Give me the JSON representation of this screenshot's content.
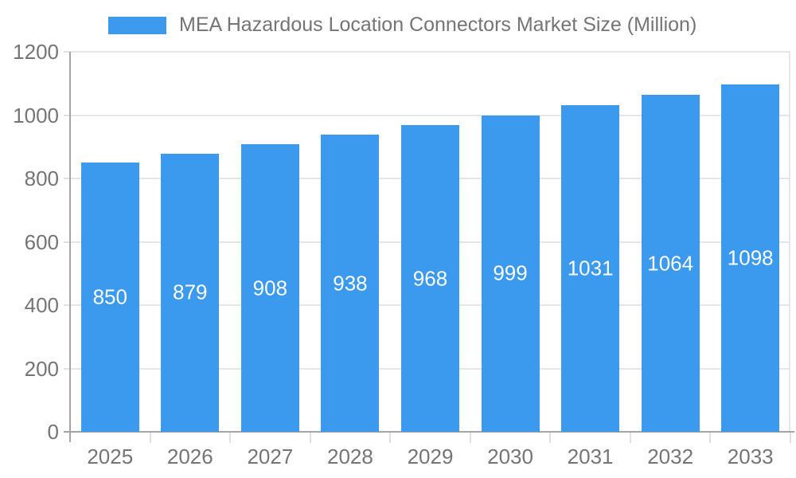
{
  "legend": {
    "label": "MEA Hazardous Location Connectors Market Size (Million)",
    "swatch_color": "#3B99EE"
  },
  "chart_data": {
    "type": "bar",
    "title": "MEA Hazardous Location Connectors Market Size (Million)",
    "categories": [
      "2025",
      "2026",
      "2027",
      "2028",
      "2029",
      "2030",
      "2031",
      "2032",
      "2033"
    ],
    "series": [
      {
        "name": "MEA Hazardous Location Connectors Market Size (Million)",
        "values": [
          850,
          879,
          908,
          938,
          968,
          999,
          1031,
          1064,
          1098
        ]
      }
    ],
    "xlabel": "",
    "ylabel": "",
    "ylim": [
      0,
      1200
    ],
    "yticks": [
      0,
      200,
      400,
      600,
      800,
      1000,
      1200
    ],
    "grid": "horizontal",
    "legend_position": "top",
    "bar_labels_inside": true,
    "colors": {
      "bar": "#3B99EE",
      "bar_label": "#FFFFFF",
      "grid": "#E6E6E6",
      "axis": "#A6A6A6",
      "tick": "#E0E0E0",
      "text": "#757575",
      "background": "#FFFFFF"
    }
  }
}
